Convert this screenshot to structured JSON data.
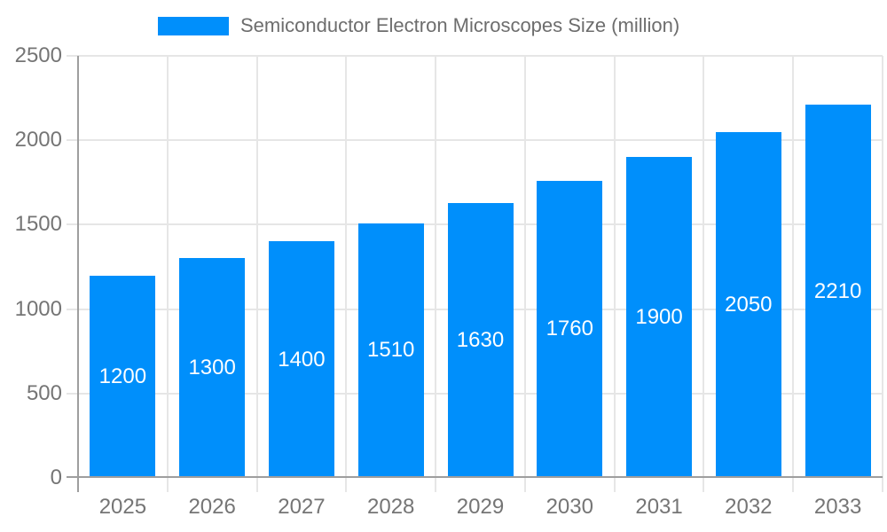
{
  "chart_data": {
    "type": "bar",
    "title": "Semiconductor Electron Microscopes Size (million)",
    "categories": [
      "2025",
      "2026",
      "2027",
      "2028",
      "2029",
      "2030",
      "2031",
      "2032",
      "2033"
    ],
    "values": [
      1200,
      1300,
      1400,
      1510,
      1630,
      1760,
      1900,
      2050,
      2210
    ],
    "series": [
      {
        "name": "Semiconductor Electron Microscopes Size (million)",
        "values": [
          1200,
          1300,
          1400,
          1510,
          1630,
          1760,
          1900,
          2050,
          2210
        ],
        "color": "#008FFB"
      }
    ],
    "xlabel": "",
    "ylabel": "",
    "ylim": [
      0,
      2500
    ],
    "yticks": [
      0,
      500,
      1000,
      1500,
      2000,
      2500
    ],
    "grid": true,
    "legend_position": "top",
    "bar_labels": {
      "visible": true,
      "color": "#ffffff"
    }
  },
  "colors": {
    "bar": "#008FFB",
    "background": "#ffffff"
  }
}
